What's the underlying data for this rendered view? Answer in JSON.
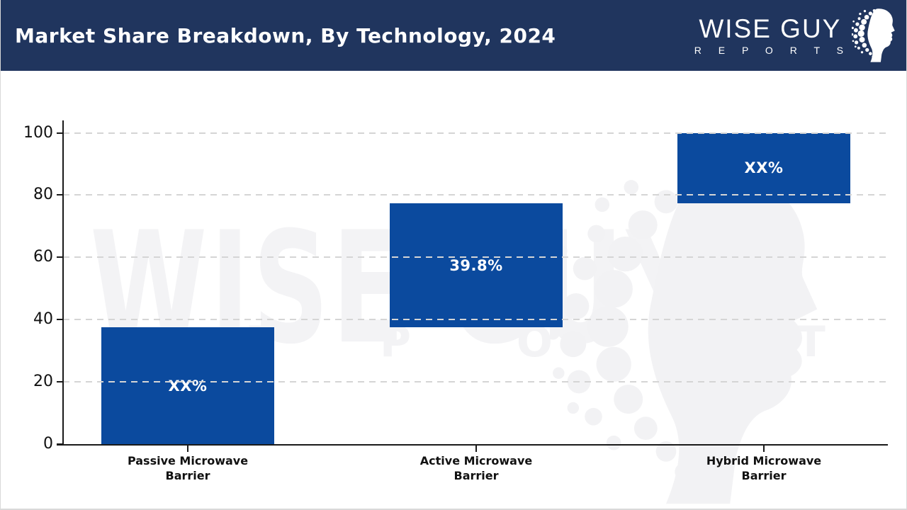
{
  "header": {
    "title": "Market Share Breakdown, By Technology, 2024",
    "logo": {
      "wordmark": "WISE GUY",
      "subtext": "R E P O R T S"
    }
  },
  "watermark": {
    "line1": "WISE GUY",
    "line2": "R E P O R T S"
  },
  "chart_data": {
    "type": "bar",
    "variant": "waterfall-segment-bars",
    "title": "Market Share Breakdown, By Technology, 2024",
    "xlabel": "",
    "ylabel": "",
    "ylim": [
      0,
      100
    ],
    "y_ticks": [
      0,
      20,
      40,
      60,
      80,
      100
    ],
    "grid": "horizontal dashed",
    "legend": "none",
    "bar_color": "#0b4a9e",
    "categories": [
      "Passive Microwave Barrier",
      "Active Microwave Barrier",
      "Hybrid Microwave Barrier"
    ],
    "bars": [
      {
        "category_line1": "Passive Microwave",
        "category_line2": "Barrier",
        "start": 0,
        "end": 37.5,
        "label": "XX%"
      },
      {
        "category_line1": "Active Microwave",
        "category_line2": "Barrier",
        "start": 37.5,
        "end": 77.3,
        "label": "39.8%",
        "value": 39.8
      },
      {
        "category_line1": "Hybrid Microwave",
        "category_line2": "Barrier",
        "start": 77.3,
        "end": 100,
        "label": "XX%"
      }
    ]
  }
}
